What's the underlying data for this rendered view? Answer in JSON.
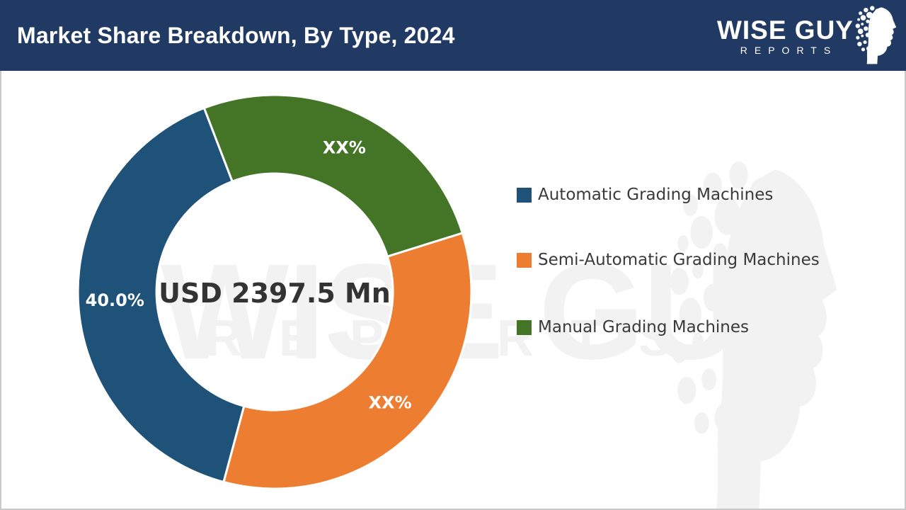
{
  "header": {
    "title": "Market Share Breakdown, By Type, 2024",
    "logo": {
      "line1": "WISE GUY",
      "line2": "REPORTS"
    }
  },
  "watermark": {
    "line1": "WISE GUY",
    "line2": "REPORTS"
  },
  "chart_data": {
    "type": "pie",
    "subtype": "donut",
    "title": "Market Share Breakdown, By Type, 2024",
    "center_label": "USD 2397.5 Mn",
    "start_angle_deg": 111,
    "direction": "counterclockwise",
    "legend_position": "right",
    "segments": [
      {
        "name": "Automatic Grading Machines",
        "color": "#1f5278",
        "display_label": "40.0%",
        "value_pct": 40
      },
      {
        "name": "Semi-Automatic Grading Machines",
        "color": "#ed7d31",
        "display_label": "XX%",
        "value_pct": 34
      },
      {
        "name": "Manual Grading Machines",
        "color": "#447426",
        "display_label": "XX%",
        "value_pct": 26
      }
    ]
  },
  "colors": {
    "header_bg": "#213a64",
    "content_border": "#c9c9c9",
    "watermark": "#f2f2f3",
    "center_text": "#333333",
    "segment_label_text": "#ffffff",
    "legend_text": "#3a3a3a"
  }
}
